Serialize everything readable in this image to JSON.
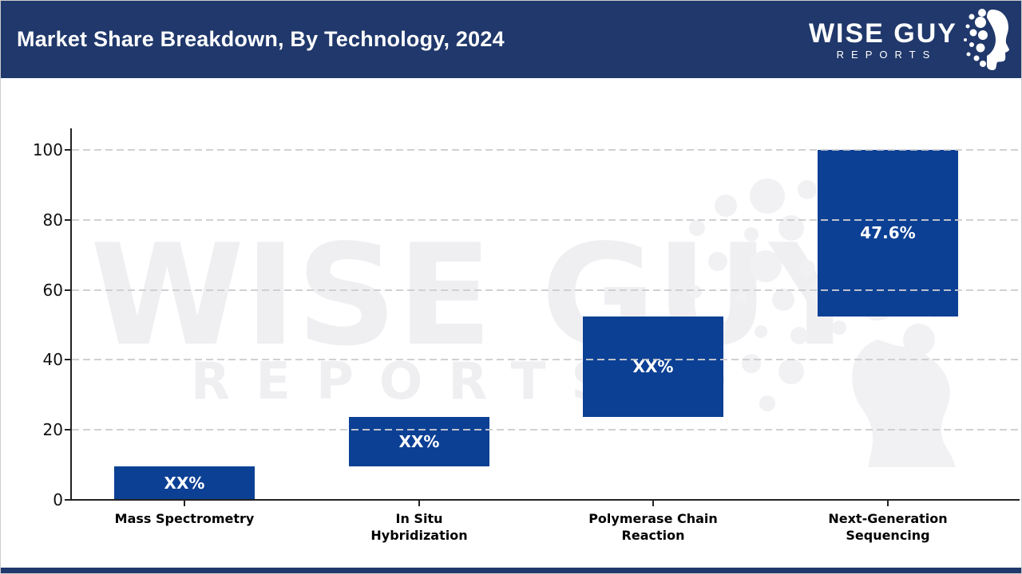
{
  "header": {
    "title": "Market Share Breakdown, By Technology, 2024",
    "bg_color": "#20386b",
    "logo": {
      "line1": "WISE GUY",
      "line2": "REPORTS"
    }
  },
  "watermark": {
    "line1": "WISE GUY",
    "line2": "REPORTS"
  },
  "footer": {
    "bg_color": "#20386b"
  },
  "chart_data": {
    "type": "bar",
    "variant": "floating-waterfall",
    "title": "Market Share Breakdown, By Technology, 2024",
    "categories": [
      "Mass Spectrometry",
      "In Situ Hybridization",
      "Polymerase Chain Reaction",
      "Next-Generation Sequencing"
    ],
    "categories_lines": [
      [
        "Mass Spectrometry"
      ],
      [
        "In Situ",
        "Hybridization"
      ],
      [
        "Polymerase Chain",
        "Reaction"
      ],
      [
        "Next-Generation",
        "Sequencing"
      ]
    ],
    "segments": [
      {
        "category": "Mass Spectrometry",
        "label": "XX%",
        "start": 0,
        "end": 9.5
      },
      {
        "category": "In Situ Hybridization",
        "label": "XX%",
        "start": 9.5,
        "end": 23.8
      },
      {
        "category": "Polymerase Chain Reaction",
        "label": "XX%",
        "start": 23.8,
        "end": 52.4
      },
      {
        "category": "Next-Generation Sequencing",
        "label": "47.6%",
        "start": 52.4,
        "end": 100,
        "value": 47.6
      }
    ],
    "ylim": [
      0,
      100
    ],
    "yticks": [
      0,
      20,
      40,
      60,
      80,
      100
    ],
    "xlabel": "",
    "ylabel": "",
    "grid": {
      "horizontal": true,
      "style": "dashed",
      "over_bars": true
    },
    "legend": "none",
    "colors": {
      "bar": "#0c4094",
      "bar_label": "#ffffff",
      "gridline": "#d2d2d4",
      "axis": "#222222"
    }
  }
}
